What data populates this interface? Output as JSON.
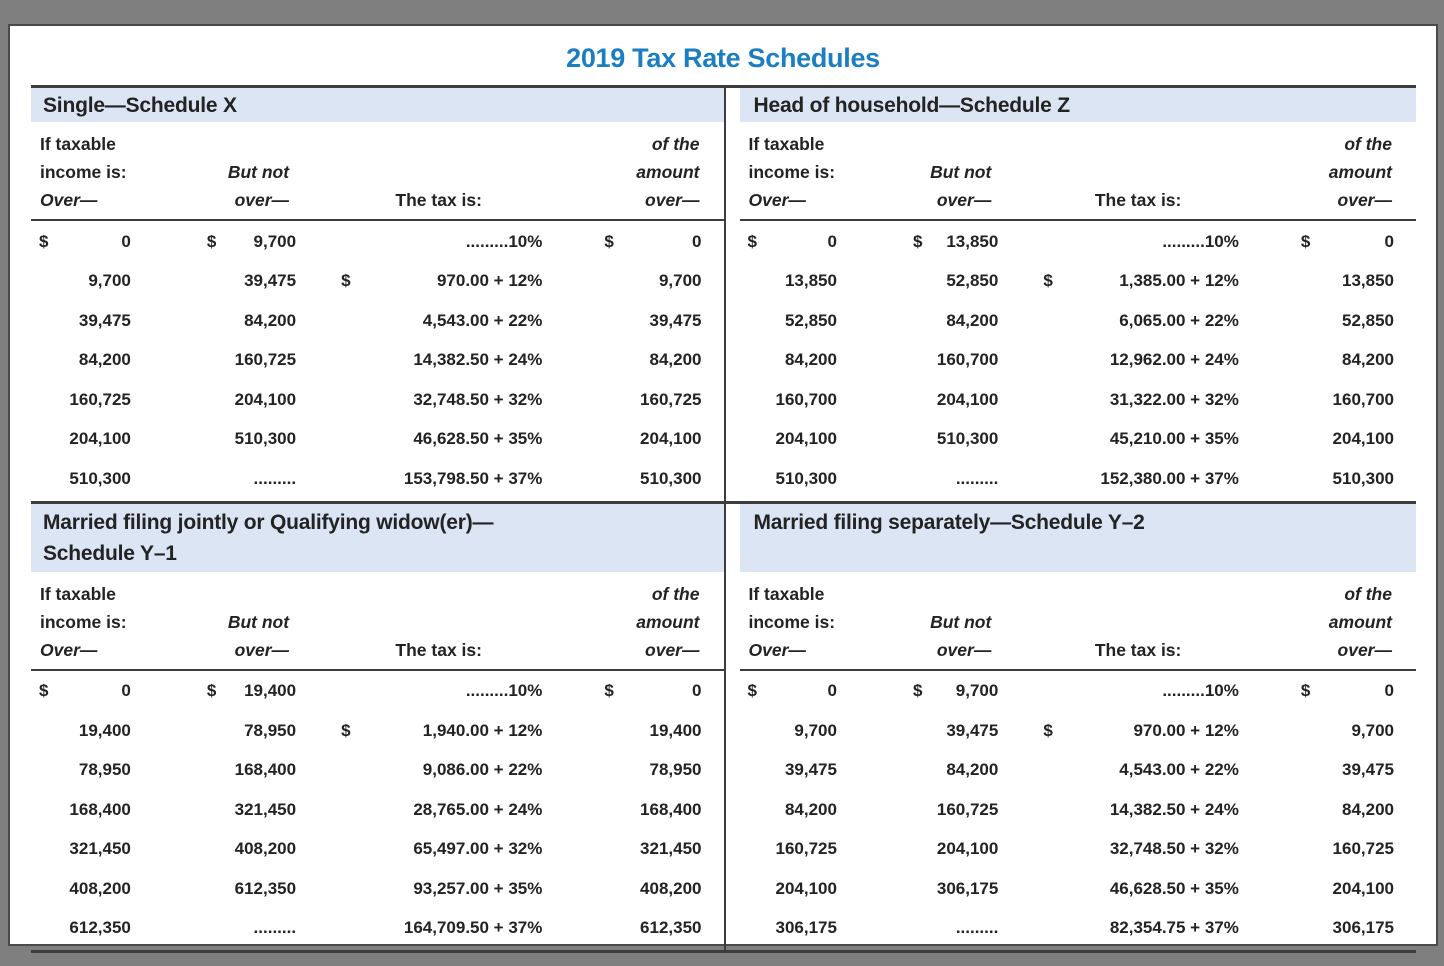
{
  "title": "2019 Tax Rate Schedules",
  "colors": {
    "title_blue": "#1b7ec2",
    "band_blue": "#dbe5f4",
    "rule": "#3d3d3d",
    "text": "#232323",
    "surround_gray": "#7f7f7f"
  },
  "column_headers": {
    "income_label": "If taxable\nincome is:",
    "over_label": "Over—",
    "butnot_label": "But not\nover—",
    "tax_label": "The tax is:",
    "amount_label": "of the\namount\nover—"
  },
  "schedules": [
    {
      "title": "Single—Schedule X",
      "rows": [
        {
          "over_prefix": "$",
          "over": "0",
          "but_not_prefix": "$",
          "but_not": "9,700",
          "tax_prefix": "",
          "tax": ".........10%",
          "amount_prefix": "$",
          "amount": "0"
        },
        {
          "over_prefix": "",
          "over": "9,700",
          "but_not_prefix": "",
          "but_not": "39,475",
          "tax_prefix": "$",
          "tax": "970.00 + 12%",
          "amount_prefix": "",
          "amount": "9,700"
        },
        {
          "over_prefix": "",
          "over": "39,475",
          "but_not_prefix": "",
          "but_not": "84,200",
          "tax_prefix": "",
          "tax": "4,543.00 + 22%",
          "amount_prefix": "",
          "amount": "39,475"
        },
        {
          "over_prefix": "",
          "over": "84,200",
          "but_not_prefix": "",
          "but_not": "160,725",
          "tax_prefix": "",
          "tax": "14,382.50 + 24%",
          "amount_prefix": "",
          "amount": "84,200"
        },
        {
          "over_prefix": "",
          "over": "160,725",
          "but_not_prefix": "",
          "but_not": "204,100",
          "tax_prefix": "",
          "tax": "32,748.50 + 32%",
          "amount_prefix": "",
          "amount": "160,725"
        },
        {
          "over_prefix": "",
          "over": "204,100",
          "but_not_prefix": "",
          "but_not": "510,300",
          "tax_prefix": "",
          "tax": "46,628.50 + 35%",
          "amount_prefix": "",
          "amount": "204,100"
        },
        {
          "over_prefix": "",
          "over": "510,300",
          "but_not_prefix": "",
          "but_not": ".........",
          "tax_prefix": "",
          "tax": "153,798.50 + 37%",
          "amount_prefix": "",
          "amount": "510,300"
        }
      ]
    },
    {
      "title": "Head of household—Schedule Z",
      "rows": [
        {
          "over_prefix": "$",
          "over": "0",
          "but_not_prefix": "$",
          "but_not": "13,850",
          "tax_prefix": "",
          "tax": ".........10%",
          "amount_prefix": "$",
          "amount": "0"
        },
        {
          "over_prefix": "",
          "over": "13,850",
          "but_not_prefix": "",
          "but_not": "52,850",
          "tax_prefix": "$",
          "tax": "1,385.00 + 12%",
          "amount_prefix": "",
          "amount": "13,850"
        },
        {
          "over_prefix": "",
          "over": "52,850",
          "but_not_prefix": "",
          "but_not": "84,200",
          "tax_prefix": "",
          "tax": "6,065.00 + 22%",
          "amount_prefix": "",
          "amount": "52,850"
        },
        {
          "over_prefix": "",
          "over": "84,200",
          "but_not_prefix": "",
          "but_not": "160,700",
          "tax_prefix": "",
          "tax": "12,962.00 + 24%",
          "amount_prefix": "",
          "amount": "84,200"
        },
        {
          "over_prefix": "",
          "over": "160,700",
          "but_not_prefix": "",
          "but_not": "204,100",
          "tax_prefix": "",
          "tax": "31,322.00 + 32%",
          "amount_prefix": "",
          "amount": "160,700"
        },
        {
          "over_prefix": "",
          "over": "204,100",
          "but_not_prefix": "",
          "but_not": "510,300",
          "tax_prefix": "",
          "tax": "45,210.00 + 35%",
          "amount_prefix": "",
          "amount": "204,100"
        },
        {
          "over_prefix": "",
          "over": "510,300",
          "but_not_prefix": "",
          "but_not": ".........",
          "tax_prefix": "",
          "tax": "152,380.00 + 37%",
          "amount_prefix": "",
          "amount": "510,300"
        }
      ]
    },
    {
      "title": "Married filing jointly or Qualifying widow(er)—\nSchedule Y–1",
      "rows": [
        {
          "over_prefix": "$",
          "over": "0",
          "but_not_prefix": "$",
          "but_not": "19,400",
          "tax_prefix": "",
          "tax": ".........10%",
          "amount_prefix": "$",
          "amount": "0"
        },
        {
          "over_prefix": "",
          "over": "19,400",
          "but_not_prefix": "",
          "but_not": "78,950",
          "tax_prefix": "$",
          "tax": "1,940.00 + 12%",
          "amount_prefix": "",
          "amount": "19,400"
        },
        {
          "over_prefix": "",
          "over": "78,950",
          "but_not_prefix": "",
          "but_not": "168,400",
          "tax_prefix": "",
          "tax": "9,086.00 + 22%",
          "amount_prefix": "",
          "amount": "78,950"
        },
        {
          "over_prefix": "",
          "over": "168,400",
          "but_not_prefix": "",
          "but_not": "321,450",
          "tax_prefix": "",
          "tax": "28,765.00 + 24%",
          "amount_prefix": "",
          "amount": "168,400"
        },
        {
          "over_prefix": "",
          "over": "321,450",
          "but_not_prefix": "",
          "but_not": "408,200",
          "tax_prefix": "",
          "tax": "65,497.00 + 32%",
          "amount_prefix": "",
          "amount": "321,450"
        },
        {
          "over_prefix": "",
          "over": "408,200",
          "but_not_prefix": "",
          "but_not": "612,350",
          "tax_prefix": "",
          "tax": "93,257.00 + 35%",
          "amount_prefix": "",
          "amount": "408,200"
        },
        {
          "over_prefix": "",
          "over": "612,350",
          "but_not_prefix": "",
          "but_not": ".........",
          "tax_prefix": "",
          "tax": "164,709.50 + 37%",
          "amount_prefix": "",
          "amount": "612,350"
        }
      ]
    },
    {
      "title": "Married filing separately—Schedule Y–2",
      "rows": [
        {
          "over_prefix": "$",
          "over": "0",
          "but_not_prefix": "$",
          "but_not": "9,700",
          "tax_prefix": "",
          "tax": ".........10%",
          "amount_prefix": "$",
          "amount": "0"
        },
        {
          "over_prefix": "",
          "over": "9,700",
          "but_not_prefix": "",
          "but_not": "39,475",
          "tax_prefix": "$",
          "tax": "970.00 + 12%",
          "amount_prefix": "",
          "amount": "9,700"
        },
        {
          "over_prefix": "",
          "over": "39,475",
          "but_not_prefix": "",
          "but_not": "84,200",
          "tax_prefix": "",
          "tax": "4,543.00 + 22%",
          "amount_prefix": "",
          "amount": "39,475"
        },
        {
          "over_prefix": "",
          "over": "84,200",
          "but_not_prefix": "",
          "but_not": "160,725",
          "tax_prefix": "",
          "tax": "14,382.50 + 24%",
          "amount_prefix": "",
          "amount": "84,200"
        },
        {
          "over_prefix": "",
          "over": "160,725",
          "but_not_prefix": "",
          "but_not": "204,100",
          "tax_prefix": "",
          "tax": "32,748.50 + 32%",
          "amount_prefix": "",
          "amount": "160,725"
        },
        {
          "over_prefix": "",
          "over": "204,100",
          "but_not_prefix": "",
          "but_not": "306,175",
          "tax_prefix": "",
          "tax": "46,628.50 + 35%",
          "amount_prefix": "",
          "amount": "204,100"
        },
        {
          "over_prefix": "",
          "over": "306,175",
          "but_not_prefix": "",
          "but_not": ".........",
          "tax_prefix": "",
          "tax": "82,354.75 + 37%",
          "amount_prefix": "",
          "amount": "306,175"
        }
      ]
    }
  ]
}
